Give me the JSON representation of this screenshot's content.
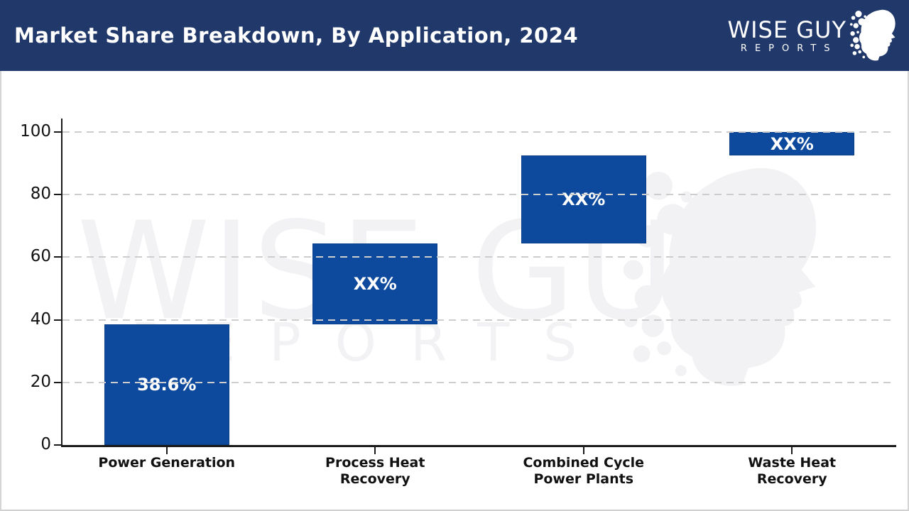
{
  "header": {
    "title": "Market Share Breakdown, By Application, 2024",
    "logo": {
      "line1": "WISE GUY",
      "line2": "REPORTS"
    }
  },
  "watermark": {
    "line1": "WISE GUY",
    "line2": "REPORTS"
  },
  "chart_data": {
    "type": "bar",
    "subtype": "floating-waterfall",
    "title": "Market Share Breakdown, By Application, 2024",
    "xlabel": "",
    "ylabel": "",
    "ylim": [
      0,
      100
    ],
    "yticks": [
      0,
      20,
      40,
      60,
      80,
      100
    ],
    "grid": "horizontal-dashed",
    "legend": "none",
    "categories": [
      "Power Generation",
      "Process Heat\nRecovery",
      "Combined Cycle\nPower Plants",
      "Waste Heat\nRecovery"
    ],
    "segments": [
      {
        "category": "Power Generation",
        "start": 0,
        "end": 38.6,
        "label": "38.6%"
      },
      {
        "category": "Process Heat Recovery",
        "start": 38.6,
        "end": 64.5,
        "label": "XX%"
      },
      {
        "category": "Combined Cycle Power Plants",
        "start": 64.5,
        "end": 92.5,
        "label": "XX%"
      },
      {
        "category": "Waste Heat Recovery",
        "start": 92.5,
        "end": 100,
        "label": "XX%"
      }
    ]
  },
  "colors": {
    "header_bg": "#20386a",
    "bar": "#0d4a9e",
    "grid": "#cdcdcd",
    "axis": "#1a1a1a",
    "watermark": "#f2f2f4",
    "bar_label_text": "#ffffff",
    "tick_text": "#111111"
  }
}
